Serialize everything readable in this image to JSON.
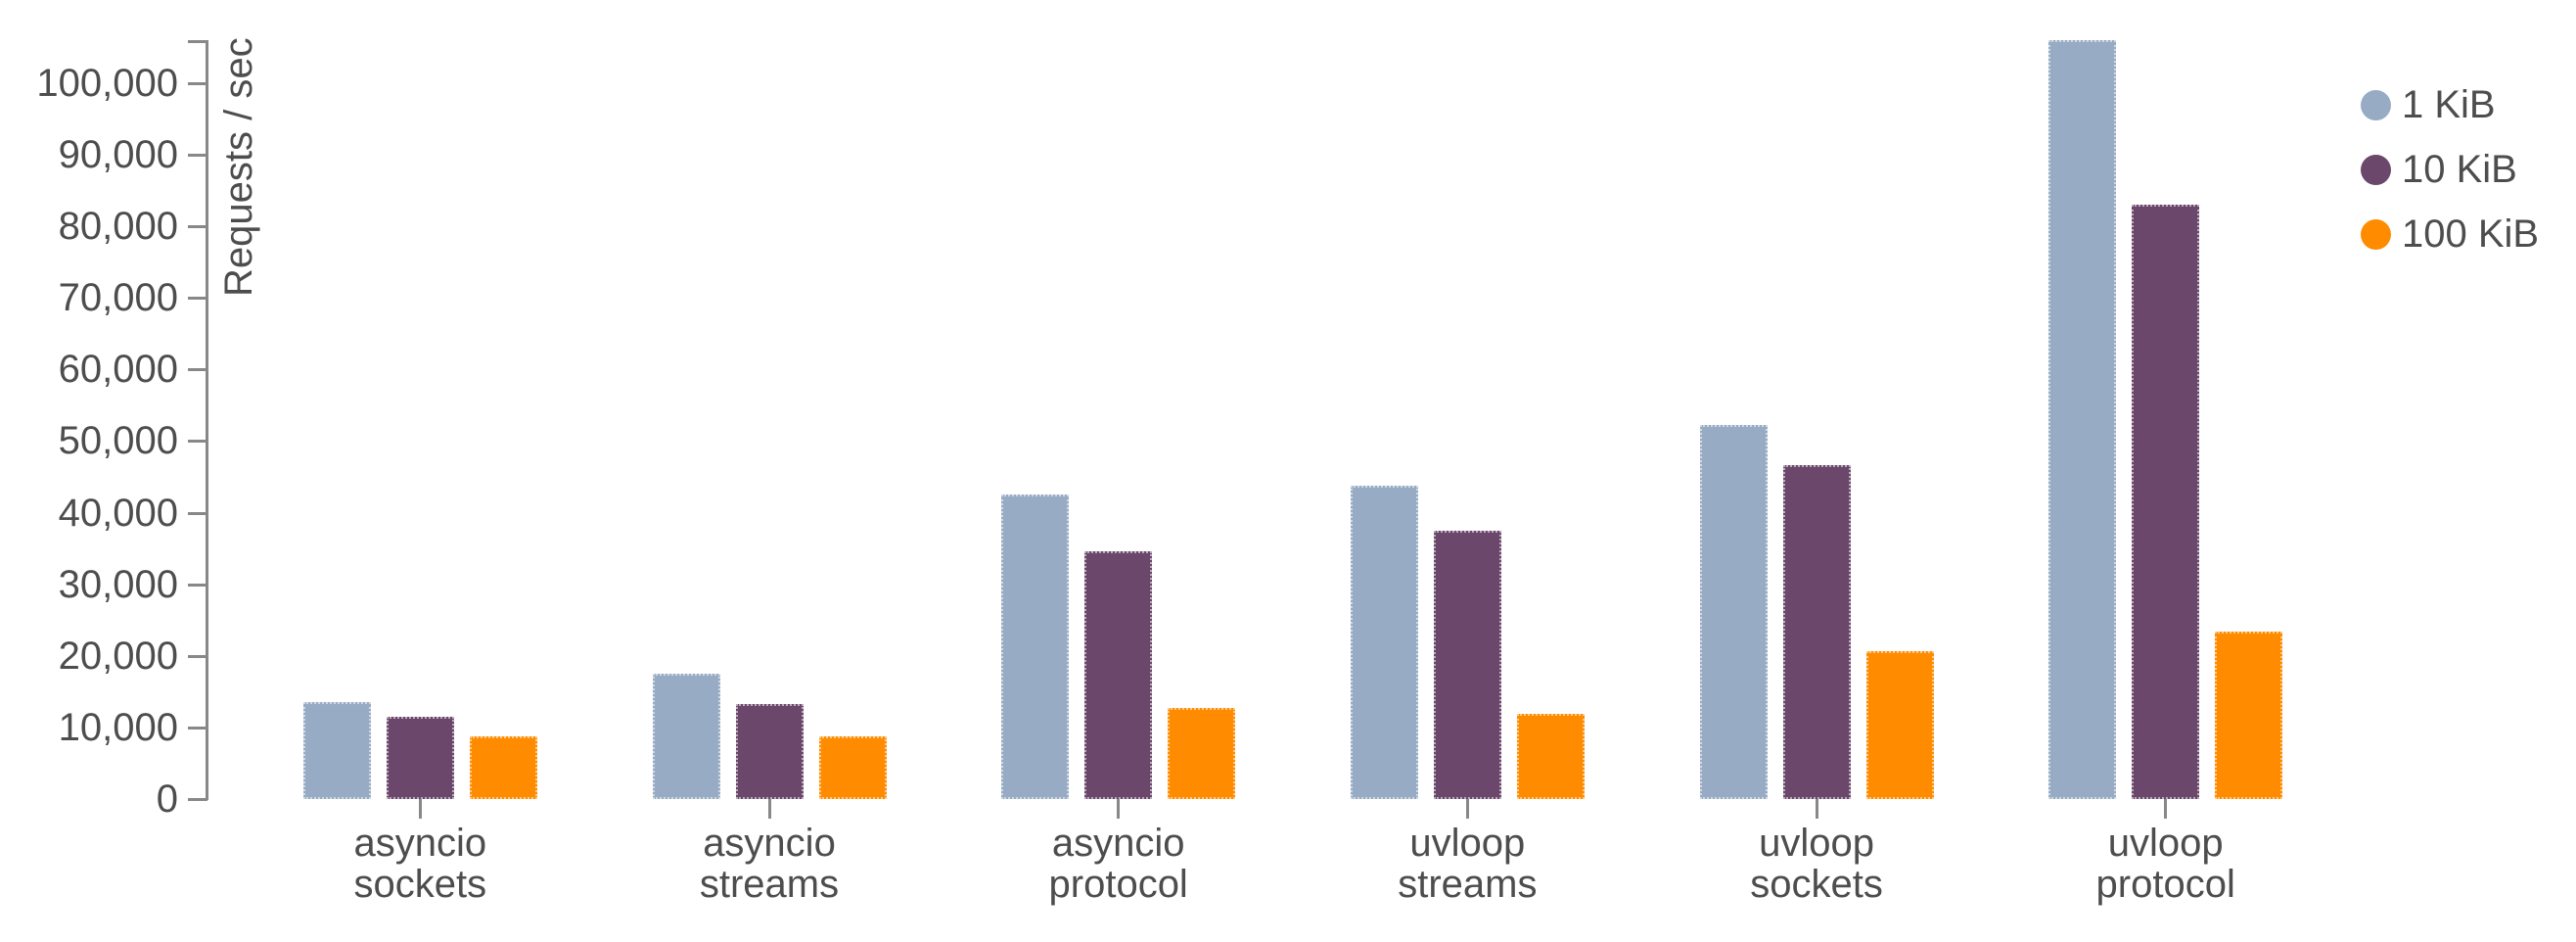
{
  "chart_data": {
    "type": "bar",
    "ylabel": "Requests / sec",
    "xlabel": "",
    "categories": [
      "asyncio\nsockets",
      "asyncio\nstreams",
      "asyncio\nprotocol",
      "uvloop\nstreams",
      "uvloop\nsockets",
      "uvloop\nprotocol"
    ],
    "series": [
      {
        "name": "1 KiB",
        "color": "#98abc5",
        "values": [
          13500,
          17500,
          42600,
          43800,
          52200,
          106000
        ]
      },
      {
        "name": "10 KiB",
        "color": "#6b486b",
        "values": [
          11500,
          13200,
          34600,
          37500,
          46700,
          83000
        ]
      },
      {
        "name": "100 KiB",
        "color": "#ff8c00",
        "values": [
          8700,
          8700,
          12700,
          11900,
          20700,
          23400
        ]
      }
    ],
    "ylim": [
      0,
      106000
    ],
    "yticks": [
      0,
      10000,
      20000,
      30000,
      40000,
      50000,
      60000,
      70000,
      80000,
      90000,
      100000
    ],
    "ytick_labels": [
      "0",
      "10,000",
      "20,000",
      "30,000",
      "40,000",
      "50,000",
      "60,000",
      "70,000",
      "80,000",
      "90,000",
      "100,000"
    ],
    "grid": false,
    "legend_position": "top-right",
    "axis_color": "#888888",
    "text_color": "#4d4d4d",
    "background_color": "#ffffff"
  }
}
